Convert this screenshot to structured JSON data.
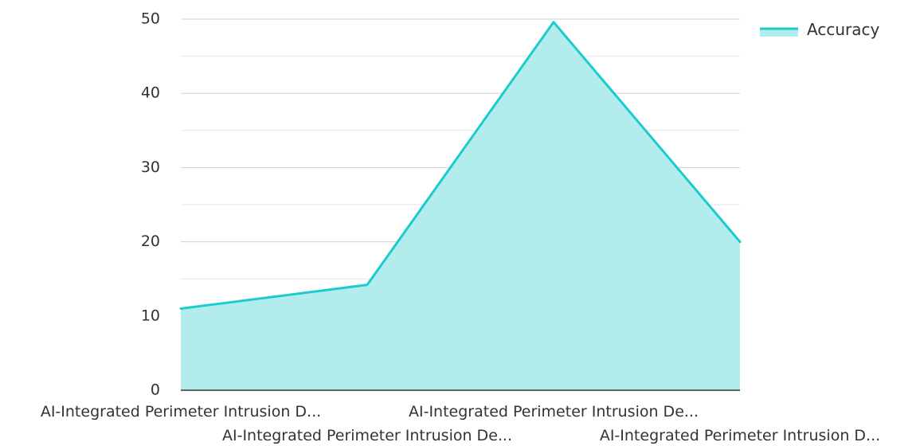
{
  "chart_data": {
    "type": "area",
    "categories": [
      "AI-Integrated Perimeter Intrusion D...",
      "AI-Integrated Perimeter Intrusion De...",
      "AI-Integrated Perimeter Intrusion De...",
      "AI-Integrated Perimeter Intrusion D..."
    ],
    "series": [
      {
        "name": "Accuracy",
        "values": [
          11,
          14.2,
          49.6,
          20
        ],
        "color": "#1ccccc",
        "fill": "#b2ecec"
      }
    ],
    "title": "",
    "xlabel": "",
    "ylabel": "",
    "ylim": [
      0,
      50
    ],
    "yticks": [
      "0",
      "10",
      "20",
      "30",
      "40",
      "50"
    ],
    "grid": true,
    "legend_position": "top-right"
  }
}
